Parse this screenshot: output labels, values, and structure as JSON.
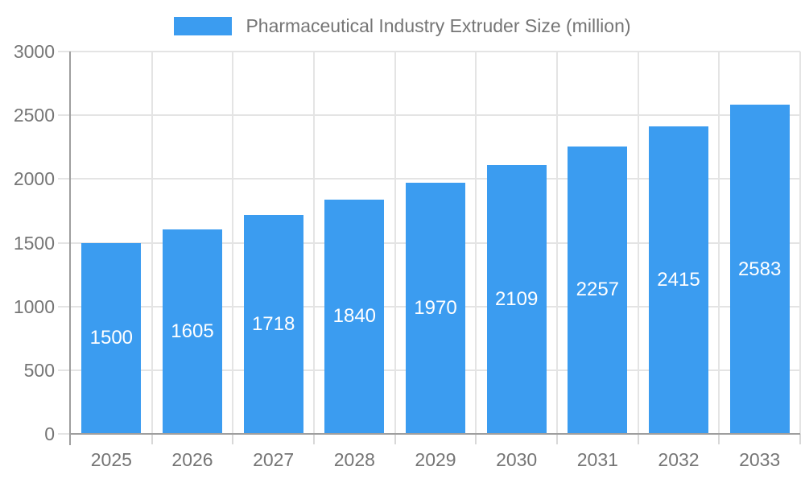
{
  "chart_data": {
    "type": "bar",
    "title": "Pharmaceutical Industry Extruder Size (million)",
    "legend_entries": [
      "Pharmaceutical Industry Extruder Size (million)"
    ],
    "legend_position": "top-center",
    "categories": [
      "2025",
      "2026",
      "2027",
      "2028",
      "2029",
      "2030",
      "2031",
      "2032",
      "2033"
    ],
    "values": [
      1500,
      1605,
      1718,
      1840,
      1970,
      2109,
      2257,
      2415,
      2583
    ],
    "xlabel": "",
    "ylabel": "",
    "ylim": [
      0,
      3000
    ],
    "yticks": [
      0,
      500,
      1000,
      1500,
      2000,
      2500,
      3000
    ],
    "grid": true,
    "value_labels_position": "inside-center"
  },
  "colors": {
    "bar": "#3B9CF0",
    "grid": "#E4E4E4",
    "axis": "#9E9E9E",
    "boundary_tick": "#D8D8D8",
    "axis_label": "#757575",
    "legend_text": "#757575",
    "value_label": "#FFFFFF",
    "background": "#FFFFFF"
  }
}
